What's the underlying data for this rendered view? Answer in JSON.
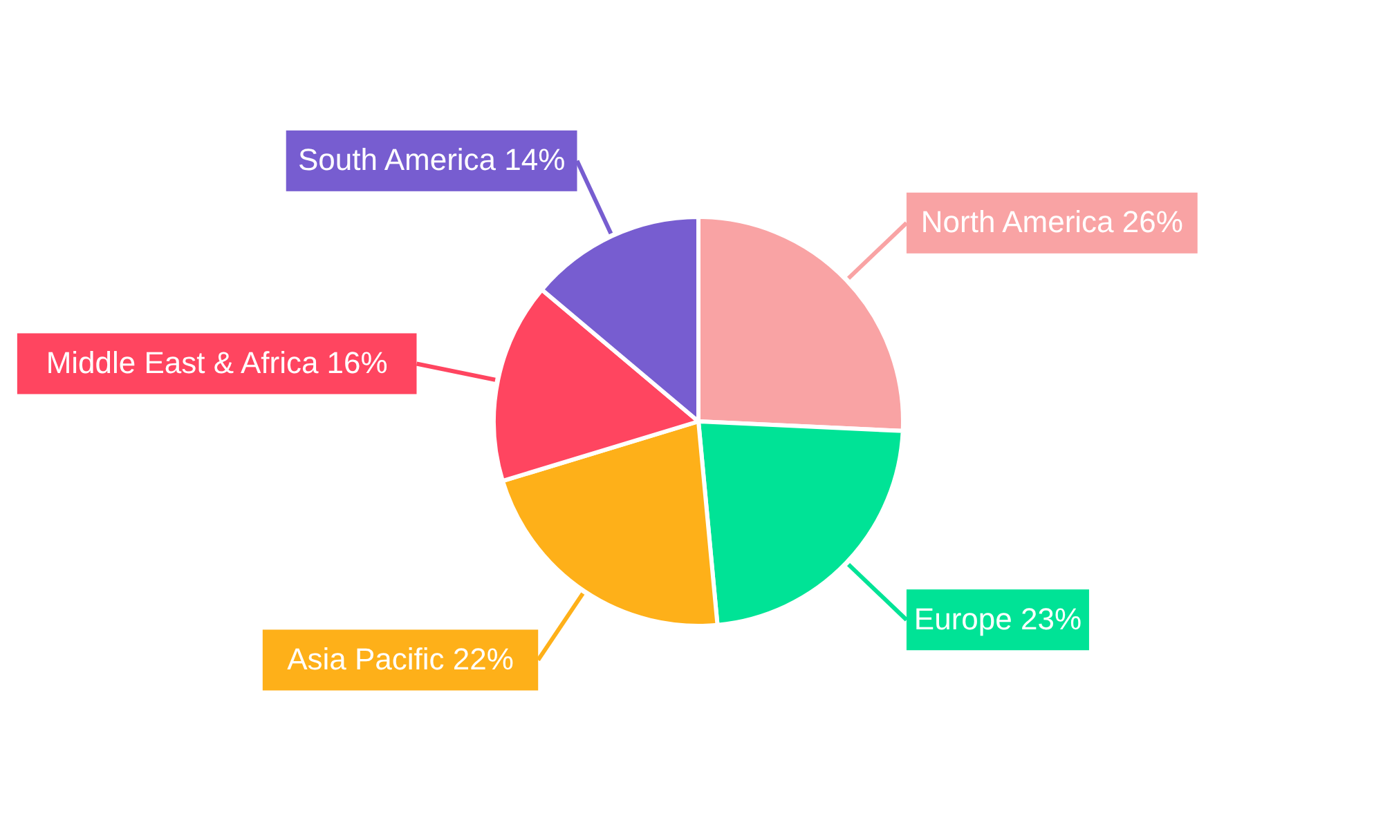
{
  "chart_data": {
    "type": "pie",
    "categories": [
      "North America",
      "Europe",
      "Asia Pacific",
      "Middle East & Africa",
      "South America"
    ],
    "values": [
      26,
      23,
      22,
      16,
      14
    ],
    "value_labels": [
      "26%",
      "23%",
      "22%",
      "16%",
      "14%"
    ],
    "colors": [
      "#f9a3a4",
      "#00e396",
      "#feb019",
      "#ff4560",
      "#775dd0"
    ]
  }
}
